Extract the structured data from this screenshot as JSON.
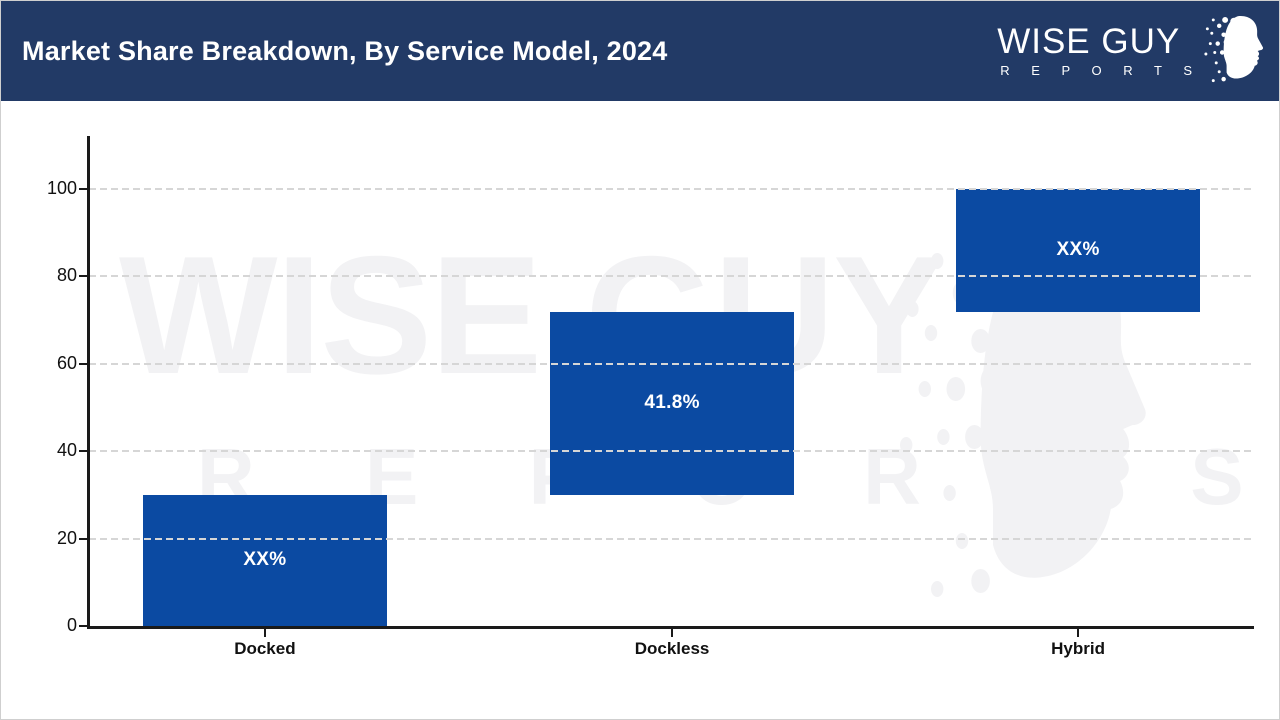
{
  "header": {
    "title": "Market Share Breakdown, By Service Model, 2024",
    "logo": {
      "brand_line1": "WISE GUY",
      "brand_line2": "R E P O R T S"
    }
  },
  "watermark": {
    "line1": "WISE GUY",
    "line2": "R E P O R T S"
  },
  "colors": {
    "header_bg": "#223a66",
    "bar_fill": "#0b4aa2",
    "bar_label_text": "#ffffff",
    "grid_line": "#d6d6d6",
    "axis_line": "#1a1a1a",
    "tick_label_text": "#111111",
    "watermark_gray": "#f2f2f4"
  },
  "chart_data": {
    "type": "bar",
    "variant": "floating-segment-breakdown",
    "title": "Market Share Breakdown, By Service Model, 2024",
    "categories": [
      "Docked",
      "Dockless",
      "Hybrid"
    ],
    "bars": [
      {
        "category": "Docked",
        "start": 0,
        "end": 30,
        "label": "XX%"
      },
      {
        "category": "Dockless",
        "start": 30,
        "end": 71.8,
        "label": "41.8%"
      },
      {
        "category": "Hybrid",
        "start": 71.8,
        "end": 100,
        "label": "XX%"
      }
    ],
    "xlabel": "",
    "ylabel": "",
    "yticks": [
      0,
      20,
      40,
      60,
      80,
      100
    ],
    "ylim": [
      0,
      106.3
    ],
    "grid": "horizontal-dashed-above-bars",
    "legend": "none"
  }
}
